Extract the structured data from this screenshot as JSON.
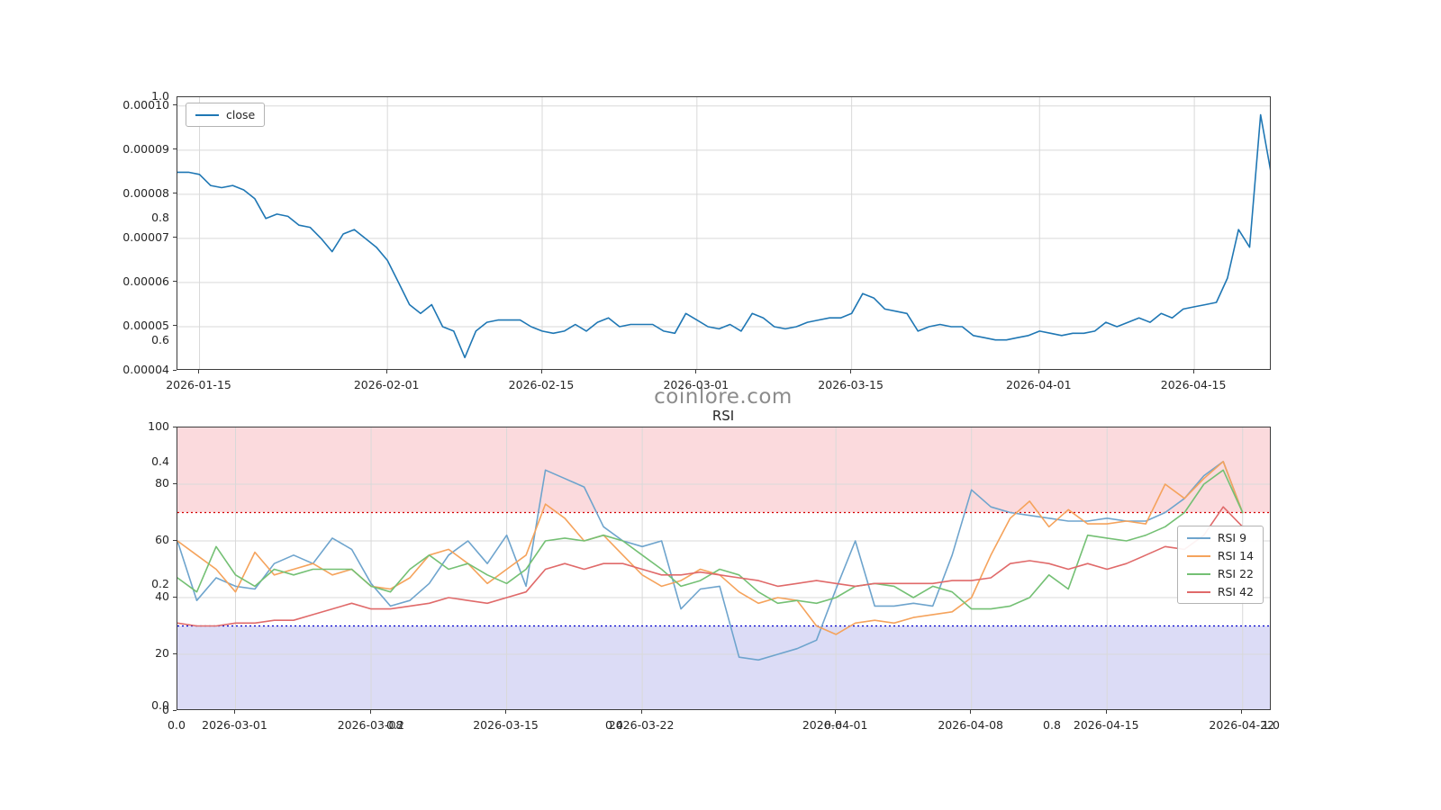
{
  "figure": {
    "watermark": "coinlore.com",
    "background": "#ffffff"
  },
  "overlay_axis": {
    "note": "stray default 0-1 axis labels visible in figure",
    "yticks": [
      "1.0",
      "0.8",
      "0.6",
      "0.4",
      "0.2",
      "0.0"
    ],
    "xticks": [
      "0.0",
      "0.2",
      "0.4",
      "0.6",
      "0.8",
      "1.0"
    ]
  },
  "colors": {
    "close": "#1f77b4",
    "rsi9": "#6ea4cd",
    "rsi14": "#f5a35c",
    "rsi22": "#74c074",
    "rsi42": "#e06a6a",
    "grid": "#d9d9d9",
    "overbought_band": "#fbdadd",
    "oversold_band": "#dcdcf6",
    "overbought_line": "#d40000",
    "oversold_line": "#0000cc"
  },
  "chart_data": [
    {
      "type": "line",
      "title": "",
      "x_start": "2026-01-13",
      "x_step": "1 day",
      "n_points": 100,
      "x_axis_span_days": 99,
      "xtick_labels": [
        "2026-01-15",
        "2026-02-01",
        "2026-02-15",
        "2026-03-01",
        "2026-03-15",
        "2026-04-01",
        "2026-04-15"
      ],
      "xtick_indices": [
        2,
        19,
        33,
        47,
        61,
        78,
        92
      ],
      "ylim": [
        4e-05,
        0.000102
      ],
      "ytick_labels": [
        "0.00004",
        "0.00005",
        "0.00006",
        "0.00007",
        "0.00008",
        "0.00009",
        "0.00010"
      ],
      "ytick_values": [
        4e-05,
        5e-05,
        6e-05,
        7e-05,
        8e-05,
        9e-05,
        0.0001
      ],
      "legend_position": "upper left",
      "grid": true,
      "series": [
        {
          "name": "close",
          "color": "#1f77b4",
          "values": [
            8.5e-05,
            8.5e-05,
            8.45e-05,
            8.2e-05,
            8.15e-05,
            8.2e-05,
            8.1e-05,
            7.9e-05,
            7.45e-05,
            7.55e-05,
            7.5e-05,
            7.3e-05,
            7.25e-05,
            7e-05,
            6.7e-05,
            7.1e-05,
            7.2e-05,
            7e-05,
            6.8e-05,
            6.5e-05,
            6e-05,
            5.5e-05,
            5.3e-05,
            5.5e-05,
            5e-05,
            4.9e-05,
            4.3e-05,
            4.9e-05,
            5.1e-05,
            5.15e-05,
            5.15e-05,
            5.15e-05,
            5e-05,
            4.9e-05,
            4.85e-05,
            4.9e-05,
            5.05e-05,
            4.9e-05,
            5.1e-05,
            5.2e-05,
            5e-05,
            5.05e-05,
            5.05e-05,
            5.05e-05,
            4.9e-05,
            4.85e-05,
            5.3e-05,
            5.15e-05,
            5e-05,
            4.95e-05,
            5.05e-05,
            4.9e-05,
            5.3e-05,
            5.2e-05,
            5e-05,
            4.95e-05,
            5e-05,
            5.1e-05,
            5.15e-05,
            5.2e-05,
            5.2e-05,
            5.3e-05,
            5.75e-05,
            5.65e-05,
            5.4e-05,
            5.35e-05,
            5.3e-05,
            4.9e-05,
            5e-05,
            5.05e-05,
            5e-05,
            5e-05,
            4.8e-05,
            4.75e-05,
            4.7e-05,
            4.7e-05,
            4.75e-05,
            4.8e-05,
            4.9e-05,
            4.85e-05,
            4.8e-05,
            4.85e-05,
            4.85e-05,
            4.9e-05,
            5.1e-05,
            5e-05,
            5.1e-05,
            5.2e-05,
            5.1e-05,
            5.3e-05,
            5.2e-05,
            5.4e-05,
            5.45e-05,
            5.5e-05,
            5.55e-05,
            6.1e-05,
            7.2e-05,
            6.8e-05,
            9.8e-05,
            8.4e-05
          ]
        }
      ]
    },
    {
      "type": "line",
      "title": "RSI",
      "x_start": "2026-02-26",
      "x_step": "1 day",
      "n_points": 56,
      "x_axis_span_days": 56.5,
      "xtick_labels": [
        "2026-03-01",
        "2026-03-08",
        "2026-03-15",
        "2026-03-22",
        "2026-04-01",
        "2026-04-08",
        "2026-04-15",
        "2026-04-22"
      ],
      "xtick_indices": [
        3,
        10,
        17,
        24,
        34,
        41,
        48,
        55
      ],
      "ylim": [
        0,
        100
      ],
      "ytick_labels": [
        "0",
        "20",
        "40",
        "60",
        "80",
        "100"
      ],
      "ytick_values": [
        0,
        20,
        40,
        60,
        80,
        100
      ],
      "legend_position": "center right",
      "grid": true,
      "bands": [
        {
          "name": "overbought-band",
          "from": 70,
          "to": 100,
          "color": "#fbdadd"
        },
        {
          "name": "oversold-band",
          "from": 0,
          "to": 30,
          "color": "#dcdcf6"
        }
      ],
      "hlines": [
        {
          "name": "overbought-threshold-line",
          "v": 70,
          "color": "#d40000",
          "style": "dotted"
        },
        {
          "name": "oversold-threshold-line",
          "v": 30,
          "color": "#0000cc",
          "style": "dotted"
        }
      ],
      "series": [
        {
          "name": "RSI 9",
          "color": "#6ea4cd",
          "values": [
            60,
            39,
            47,
            44,
            43,
            52,
            55,
            52,
            61,
            57,
            45,
            37,
            39,
            45,
            55,
            60,
            52,
            62,
            44,
            85,
            82,
            79,
            65,
            60,
            58,
            60,
            36,
            43,
            44,
            19,
            18,
            20,
            22,
            25,
            43,
            60,
            37,
            37,
            38,
            37,
            55,
            78,
            72,
            70,
            69,
            68,
            67,
            67,
            68,
            67,
            67,
            70,
            75,
            83,
            88,
            70
          ]
        },
        {
          "name": "RSI 14",
          "color": "#f5a35c",
          "values": [
            60,
            55,
            50,
            42,
            56,
            48,
            50,
            52,
            48,
            50,
            44,
            43,
            47,
            55,
            57,
            52,
            45,
            50,
            55,
            73,
            68,
            60,
            62,
            55,
            48,
            44,
            46,
            50,
            48,
            42,
            38,
            40,
            39,
            30,
            27,
            31,
            32,
            31,
            33,
            34,
            35,
            40,
            55,
            68,
            74,
            65,
            71,
            66,
            66,
            67,
            66,
            80,
            75,
            82,
            88,
            70
          ]
        },
        {
          "name": "RSI 22",
          "color": "#74c074",
          "values": [
            47,
            42,
            58,
            48,
            44,
            50,
            48,
            50,
            50,
            50,
            44,
            42,
            50,
            55,
            50,
            52,
            48,
            45,
            50,
            60,
            61,
            60,
            62,
            60,
            55,
            50,
            44,
            46,
            50,
            48,
            42,
            38,
            39,
            38,
            40,
            44,
            45,
            44,
            40,
            44,
            42,
            36,
            36,
            37,
            40,
            48,
            43,
            62,
            61,
            60,
            62,
            65,
            70,
            80,
            85,
            70
          ]
        },
        {
          "name": "RSI 42",
          "color": "#e06a6a",
          "values": [
            31,
            30,
            30,
            31,
            31,
            32,
            32,
            34,
            36,
            38,
            36,
            36,
            37,
            38,
            40,
            39,
            38,
            40,
            42,
            50,
            52,
            50,
            52,
            52,
            50,
            48,
            48,
            49,
            48,
            47,
            46,
            44,
            45,
            46,
            45,
            44,
            45,
            45,
            45,
            45,
            46,
            46,
            47,
            52,
            53,
            52,
            50,
            52,
            50,
            52,
            55,
            58,
            57,
            62,
            72,
            65
          ]
        }
      ]
    }
  ]
}
